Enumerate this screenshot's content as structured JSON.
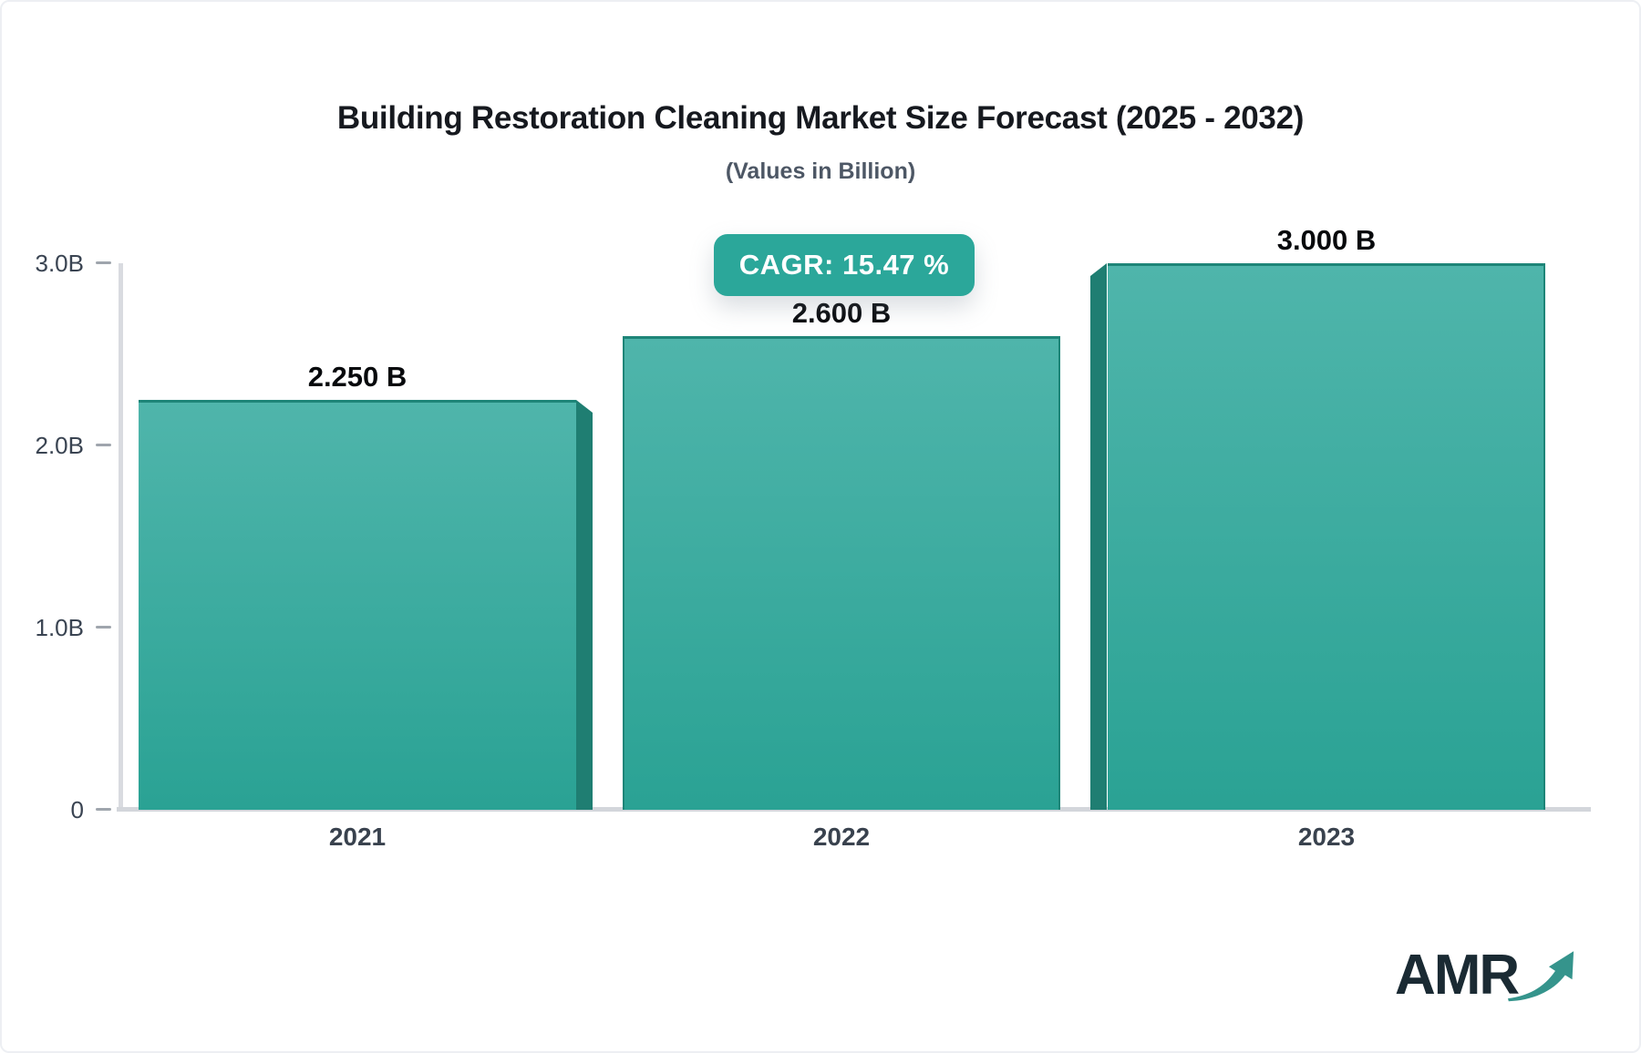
{
  "chart_data": {
    "type": "bar",
    "title": "Building Restoration Cleaning Market Size Forecast (2025 - 2032)",
    "subtitle": "(Values in Billion)",
    "categories": [
      "2021",
      "2022",
      "2023"
    ],
    "values": [
      2.25,
      2.6,
      3.0
    ],
    "value_labels": [
      "2.250 B",
      "2.600 B",
      "3.000 B"
    ],
    "ylim": [
      0,
      3.0
    ],
    "yticks": [
      {
        "value": 0,
        "label": "0"
      },
      {
        "value": 1.0,
        "label": "1.0B"
      },
      {
        "value": 2.0,
        "label": "2.0B"
      },
      {
        "value": 3.0,
        "label": "3.0B"
      }
    ],
    "grid": false,
    "legend": "none",
    "annotations": [
      {
        "text": "CAGR: 15.47 %",
        "position": "above-2022-bar"
      }
    ]
  },
  "badge": {
    "label": "CAGR: 15.47 %"
  },
  "logo": {
    "text": "AMR"
  },
  "colors": {
    "bar_gradient_top": "#4fb5ab",
    "bar_gradient_bottom": "#2aa294",
    "bar_side_dark": "#1f7e72",
    "bar_border": "#1e8578",
    "badge_bg": "#2ba79a",
    "axis_line": "#d6d9de",
    "tick_dash": "#9fa5ad",
    "title_text": "#16191f",
    "subtitle_text": "#4d5765",
    "axis_text": "#3a4452",
    "value_text": "#07090c",
    "logo_text": "#1a2a33",
    "logo_arrow": "#35948c"
  }
}
